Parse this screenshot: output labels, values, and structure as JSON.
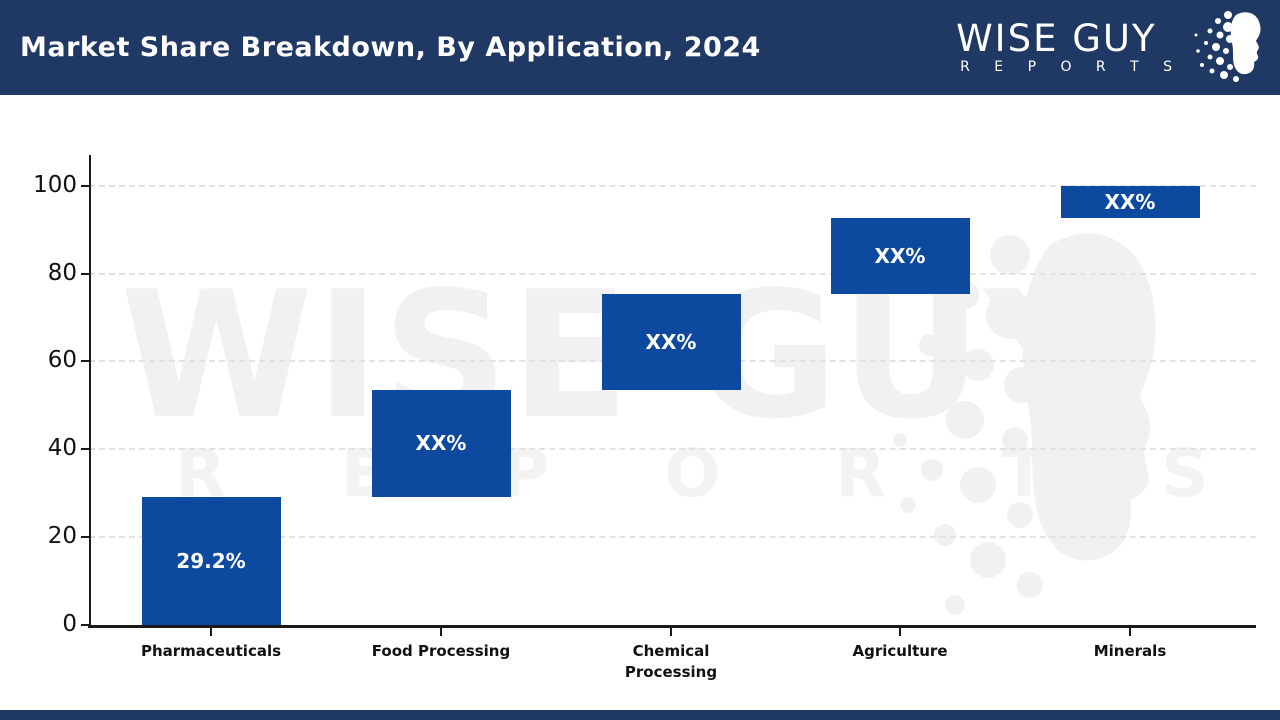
{
  "header": {
    "title": "Market Share Breakdown, By Application, 2024",
    "bg_color": "#1f3864",
    "logo": {
      "line1": "WISE GUY",
      "line2": "R E P O R T S"
    }
  },
  "watermark": {
    "line1": "WISE GUY",
    "line2": "R E P O R T S"
  },
  "chart_data": {
    "type": "bar",
    "subtype": "waterfall",
    "title": "Market Share Breakdown, By Application, 2024",
    "categories": [
      "Pharmaceuticals",
      "Food Processing",
      "Chemical Processing",
      "Agriculture",
      "Minerals"
    ],
    "segments": [
      {
        "category": "Pharmaceuticals",
        "start": 0,
        "end": 29.2,
        "label": "29.2%"
      },
      {
        "category": "Food Processing",
        "start": 29.2,
        "end": 53.5,
        "label": "XX%"
      },
      {
        "category": "Chemical Processing",
        "start": 53.5,
        "end": 75.4,
        "label": "XX%"
      },
      {
        "category": "Agriculture",
        "start": 75.4,
        "end": 92.7,
        "label": "XX%"
      },
      {
        "category": "Minerals",
        "start": 92.7,
        "end": 100,
        "label": "XX%"
      }
    ],
    "yticks": [
      0,
      20,
      40,
      60,
      80,
      100
    ],
    "ylim": [
      0,
      107
    ],
    "grid": "horizontal-dashed",
    "bar_color": "#0d4a9f",
    "bar_label_color": "#ffffff",
    "axis_color": "#1a1a1a",
    "gridline_color": "#e2e2e2",
    "header_color": "#1f3864",
    "watermark_color": "#f1f1f1"
  }
}
